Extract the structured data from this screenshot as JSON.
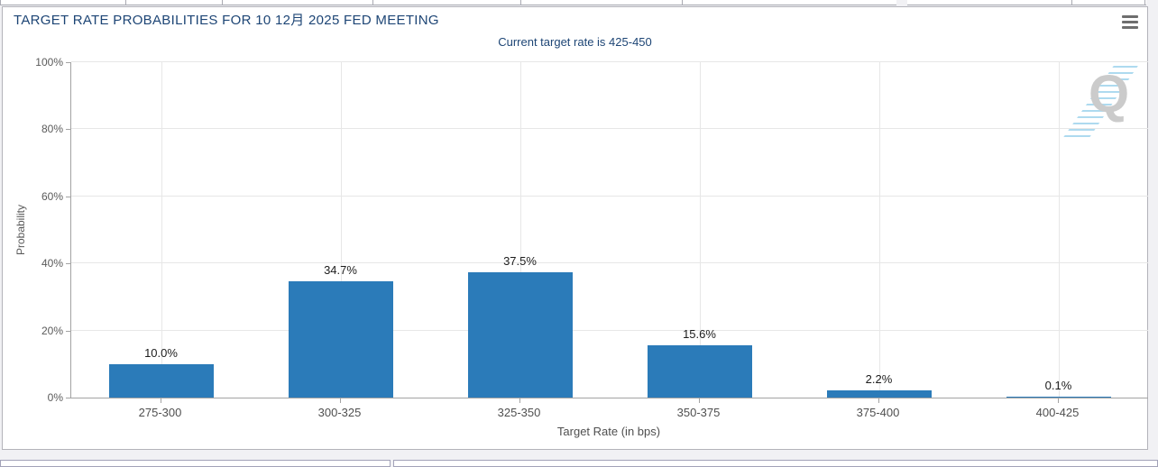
{
  "panel": {
    "title": "TARGET RATE PROBABILITIES FOR 10 12月 2025 FED MEETING",
    "subtitle": "Current target rate is 425-450",
    "menu_icon": "hamburger-menu-icon",
    "watermark_letter": "Q"
  },
  "chart_data": {
    "type": "bar",
    "title": "TARGET RATE PROBABILITIES FOR 10 12月 2025 FED MEETING",
    "subtitle": "Current target rate is 425-450",
    "categories": [
      "275-300",
      "300-325",
      "325-350",
      "350-375",
      "375-400",
      "400-425"
    ],
    "values": [
      10.0,
      34.7,
      37.5,
      15.6,
      2.2,
      0.1
    ],
    "value_labels": [
      "10.0%",
      "34.7%",
      "37.5%",
      "15.6%",
      "2.2%",
      "0.1%"
    ],
    "xlabel": "Target Rate (in bps)",
    "ylabel": "Probability",
    "ytick_values": [
      0,
      20,
      40,
      60,
      80,
      100
    ],
    "ytick_labels": [
      "0%",
      "20%",
      "40%",
      "60%",
      "80%",
      "100%"
    ],
    "ylim": [
      0,
      100
    ],
    "grid": true,
    "legend": "none",
    "bar_color": "#2b7bb9"
  }
}
